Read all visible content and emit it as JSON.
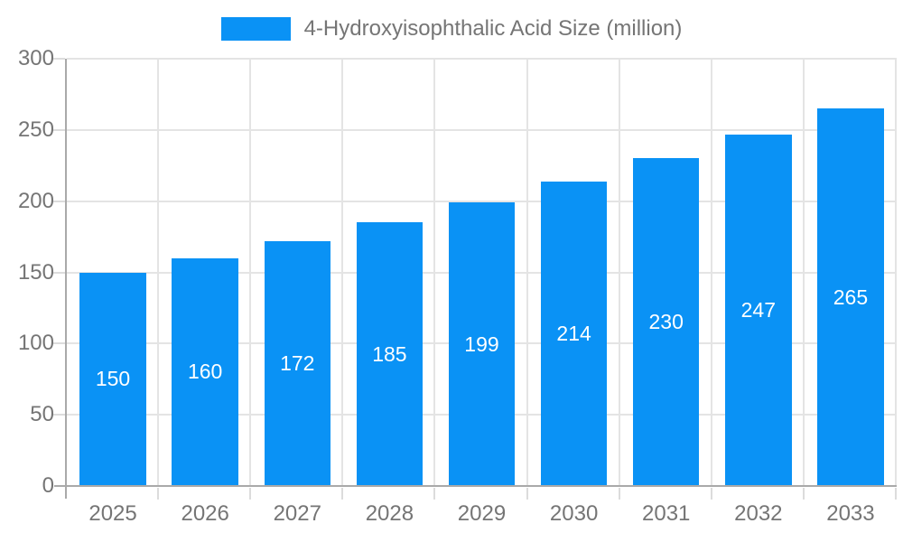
{
  "colors": {
    "bar": "#0a92f5",
    "grid": "#e4e4e4",
    "tick": "#dcdcdc",
    "axis": "#a9a9a9",
    "label_text": "#757575",
    "value_text": "#ffffff",
    "background": "#ffffff"
  },
  "chart_data": {
    "type": "bar",
    "title": "4-Hydroxyisophthalic Acid Size (million)",
    "categories": [
      "2025",
      "2026",
      "2027",
      "2028",
      "2029",
      "2030",
      "2031",
      "2032",
      "2033"
    ],
    "values": [
      150,
      160,
      172,
      185,
      199,
      214,
      230,
      247,
      265
    ],
    "xlabel": "",
    "ylabel": "",
    "ylim": [
      0,
      300
    ],
    "yticks": [
      0,
      50,
      100,
      150,
      200,
      250,
      300
    ],
    "grid": true,
    "legend_position": "top-center",
    "value_labels": "inside-center"
  }
}
